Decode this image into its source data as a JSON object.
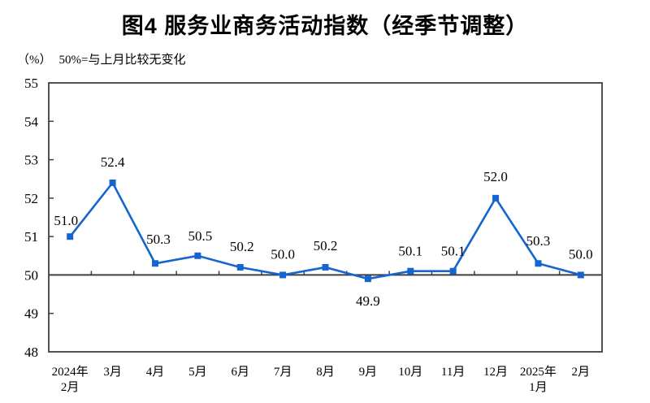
{
  "chart_data": {
    "type": "line",
    "title": "图4 服务业商务活动指数（经季节调整）",
    "unit_label": "（%）",
    "note": "50%=与上月比较无变化",
    "categories": [
      "2024年2月",
      "3月",
      "4月",
      "5月",
      "6月",
      "7月",
      "8月",
      "9月",
      "10月",
      "11月",
      "12月",
      "2025年1月",
      "2月"
    ],
    "x_tick_lines": [
      [
        "2024年",
        "2月"
      ],
      [
        "3月"
      ],
      [
        "4月"
      ],
      [
        "5月"
      ],
      [
        "6月"
      ],
      [
        "7月"
      ],
      [
        "8月"
      ],
      [
        "9月"
      ],
      [
        "10月"
      ],
      [
        "11月"
      ],
      [
        "12月"
      ],
      [
        "2025年",
        "1月"
      ],
      [
        "2月"
      ]
    ],
    "values": [
      51.0,
      52.4,
      50.3,
      50.5,
      50.2,
      50.0,
      50.2,
      49.9,
      50.1,
      50.1,
      52.0,
      50.3,
      50.0
    ],
    "point_labels": [
      "51.0",
      "52.4",
      "50.3",
      "50.5",
      "50.2",
      "50.0",
      "50.2",
      "49.9",
      "50.1",
      "50.1",
      "52.0",
      "50.3",
      "50.0"
    ],
    "label_dx": [
      -5,
      0,
      4,
      3,
      2,
      0,
      0,
      0,
      0,
      0,
      0,
      0,
      0
    ],
    "label_dy": [
      -14,
      -20,
      -24,
      -19,
      -20,
      -20,
      -21,
      33,
      -19,
      -19,
      -21,
      -22,
      -20
    ],
    "ylim": [
      48,
      55
    ],
    "yticks": [
      48,
      49,
      50,
      51,
      52,
      53,
      54,
      55
    ],
    "baseline_value": 50,
    "grid": false,
    "legend": "none",
    "colors": {
      "line": "#1565d0",
      "axis": "#3f3f3f",
      "text": "#000000",
      "background": "#ffffff"
    }
  }
}
